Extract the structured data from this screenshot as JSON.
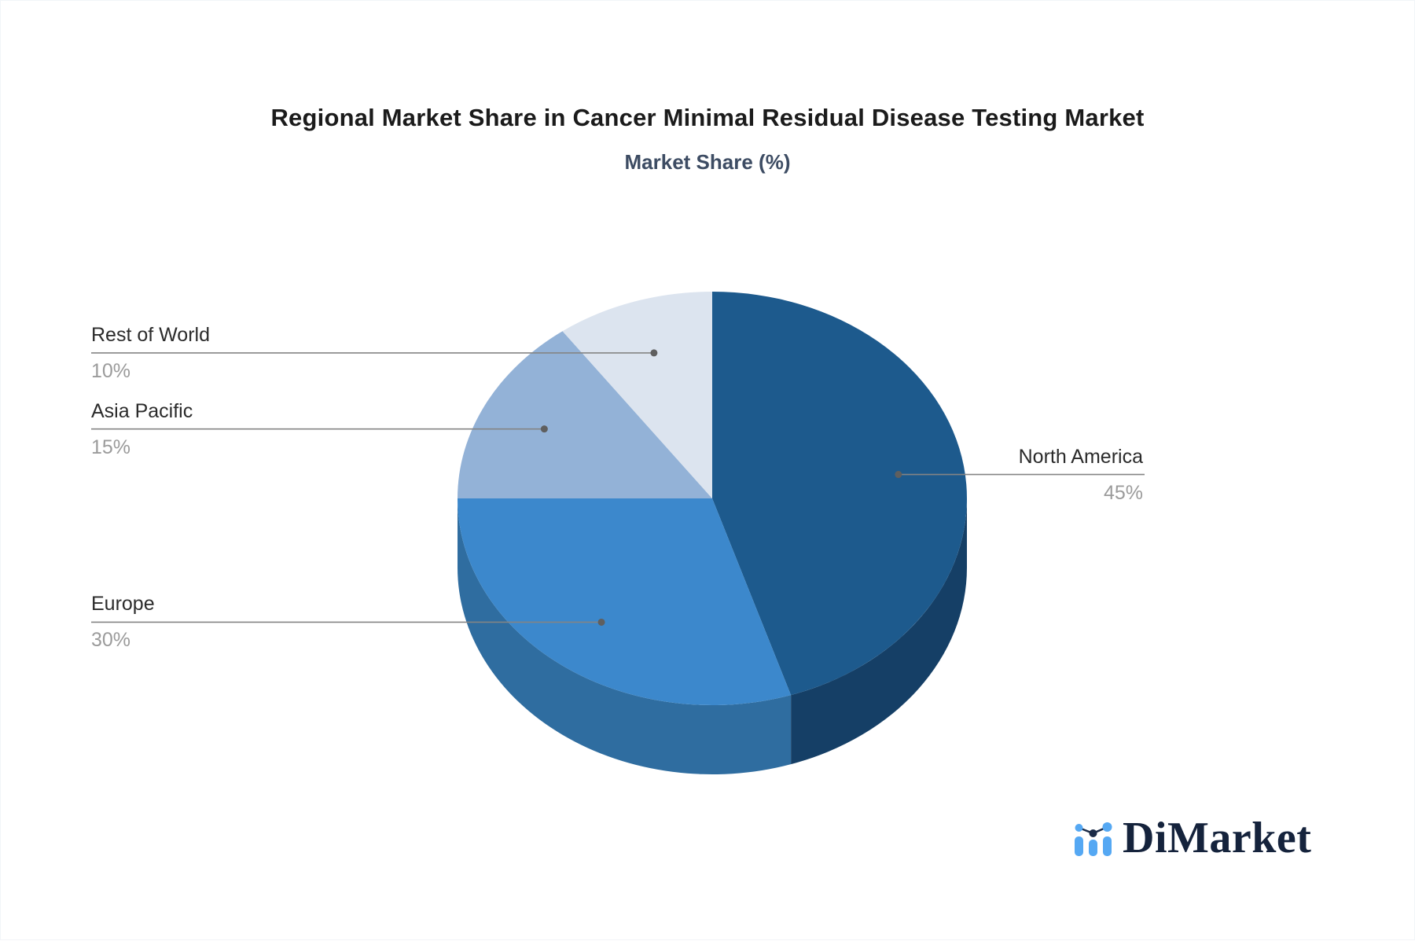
{
  "header": {
    "title": "Regional Market Share in Cancer Minimal Residual Disease Testing Market",
    "subtitle": "Market Share (%)",
    "title_color": "#1b1b1b",
    "subtitle_color": "#3d4c63"
  },
  "chart_data": {
    "type": "pie",
    "title": "Regional Market Share in Cancer Minimal Residual Disease Testing Market",
    "subtitle": "Market Share (%)",
    "unit": "%",
    "effect": "3d",
    "direction": "clockwise",
    "start_angle_deg": 0,
    "categories": [
      "North America",
      "Europe",
      "Asia Pacific",
      "Rest of World"
    ],
    "values": [
      45,
      30,
      15,
      10
    ],
    "value_labels": [
      "45%",
      "30%",
      "15%",
      "10%"
    ],
    "colors": [
      "#1d5a8d",
      "#3c88cc",
      "#93b2d7",
      "#dce4ef"
    ],
    "side_colors": [
      "#153f66",
      "#2f6da0",
      "#7d9cc0",
      "#c2cfdf"
    ],
    "leader_line_color": "#848484",
    "leader_dot_color": "#5f5f5f",
    "label_name_color": "#2b2b2b",
    "label_value_color": "#9b9b9b",
    "legend_position": "none"
  },
  "branding": {
    "logo_text": "DiMarket",
    "logo_text_color": "#15233c",
    "logo_icon": "bar-chart-with-trend-icon",
    "logo_bar_color": "#55a8f3",
    "logo_accent_color": "#1b2b47"
  }
}
